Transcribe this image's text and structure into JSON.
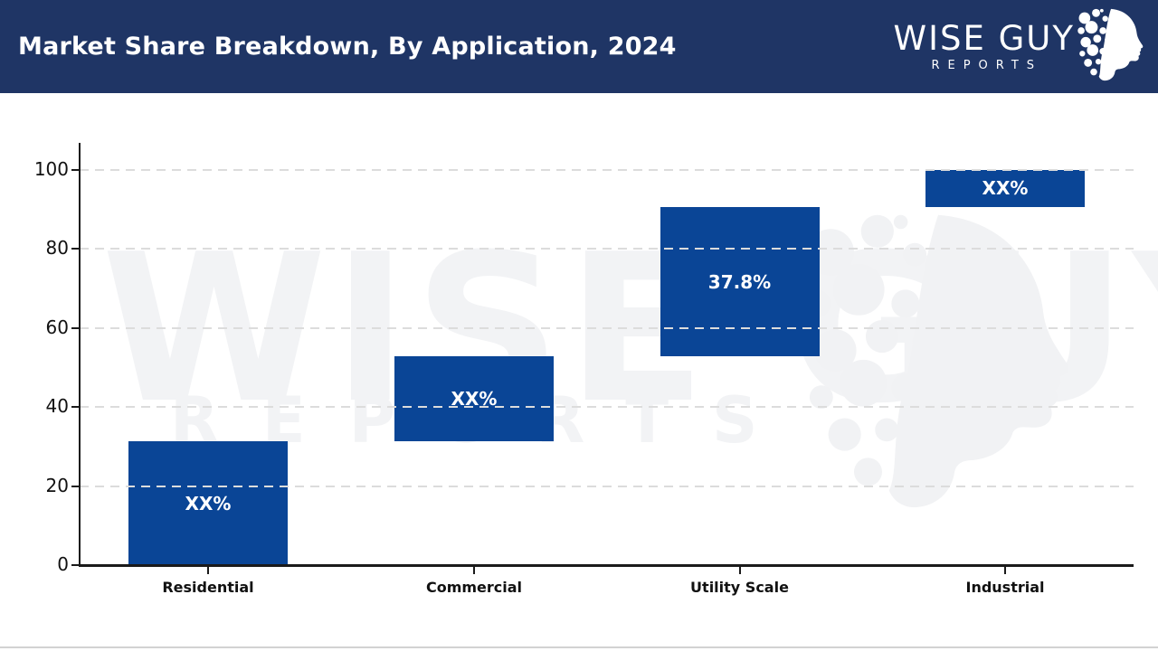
{
  "header": {
    "title": "Market Share Breakdown, By Application, 2024",
    "bg_color": "#1f3565",
    "logo": {
      "line1": "WISE GUY",
      "line2": "REPORTS"
    }
  },
  "watermark": {
    "line1": "WISE GUY",
    "line2": "REPORTS"
  },
  "chart_data": {
    "type": "bar",
    "subtype": "floating-waterfall",
    "title": "Market Share Breakdown, By Application, 2024",
    "categories": [
      "Residential",
      "Commercial",
      "Utility Scale",
      "Industrial"
    ],
    "segments": [
      {
        "category": "Residential",
        "start": 0,
        "end": 31.3,
        "value": 31.3,
        "label": "XX%"
      },
      {
        "category": "Commercial",
        "start": 31.3,
        "end": 52.7,
        "value": 21.4,
        "label": "XX%"
      },
      {
        "category": "Utility Scale",
        "start": 52.7,
        "end": 90.5,
        "value": 37.8,
        "label": "37.8%"
      },
      {
        "category": "Industrial",
        "start": 90.5,
        "end": 100,
        "value": 9.5,
        "label": "XX%"
      }
    ],
    "yticks": [
      0,
      20,
      40,
      60,
      80,
      100
    ],
    "ylim": [
      0,
      106
    ],
    "xlabel": "",
    "ylabel": "",
    "bar_color": "#0a4596",
    "grid": "horizontal-dashed",
    "grid_color": "#dcdcdc",
    "legend": "none"
  }
}
